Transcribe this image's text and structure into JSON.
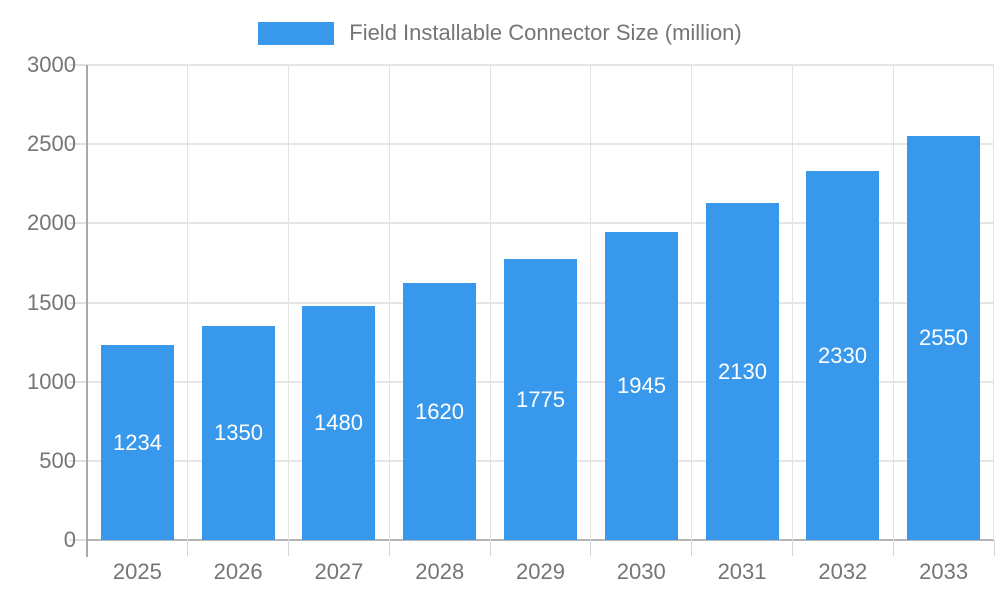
{
  "chart_data": {
    "type": "bar",
    "title": "Field Installable Connector Size (million)",
    "categories": [
      "2025",
      "2026",
      "2027",
      "2028",
      "2029",
      "2030",
      "2031",
      "2032",
      "2033"
    ],
    "values": [
      1234,
      1350,
      1480,
      1620,
      1775,
      1945,
      2130,
      2330,
      2550
    ],
    "xlabel": "",
    "ylabel": "",
    "ylim": [
      0,
      3000
    ],
    "ytick_step": 500,
    "yticks": [
      0,
      500,
      1000,
      1500,
      2000,
      2500,
      3000
    ],
    "grid": true,
    "legend": {
      "label": "Field Installable Connector Size (million)",
      "position": "top"
    },
    "value_labels": "centered-inside-bars"
  },
  "colors": {
    "bar": "#3899ec",
    "grid": "#e6e6e6",
    "axis": "#a9a9a9",
    "baseline": "#b5b5b5",
    "text": "#757575",
    "value_label": "#ffffff",
    "background": "#ffffff"
  }
}
